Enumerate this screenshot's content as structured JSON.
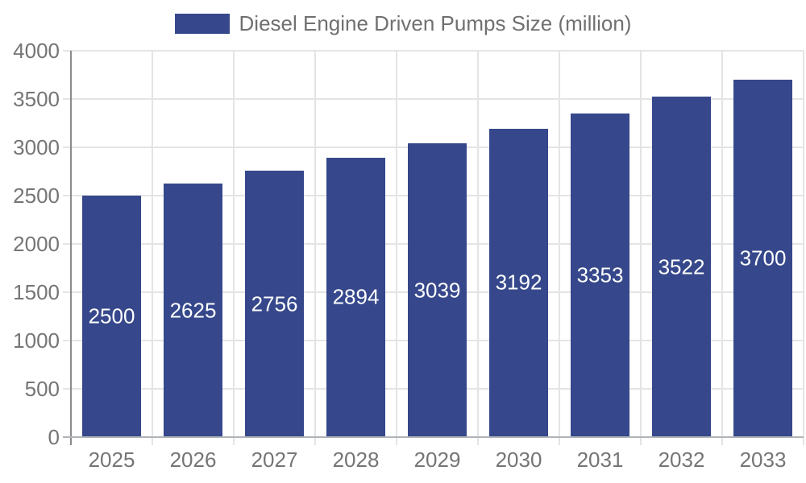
{
  "legend": {
    "label": "Diesel Engine Driven Pumps Size (million)"
  },
  "chart_data": {
    "type": "bar",
    "title": "Diesel Engine Driven Pumps Size (million)",
    "series_name": "Diesel Engine Driven Pumps Size (million)",
    "categories": [
      "2025",
      "2026",
      "2027",
      "2028",
      "2029",
      "2030",
      "2031",
      "2032",
      "2033"
    ],
    "values": [
      2500,
      2625,
      2756,
      2894,
      3039,
      3192,
      3353,
      3522,
      3700
    ],
    "bar_labels": [
      "2500",
      "2625",
      "2756",
      "2894",
      "3039",
      "3192",
      "3353",
      "3522",
      "3700"
    ],
    "xlabel": "",
    "ylabel": "",
    "ylim": [
      0,
      4000
    ],
    "ytick_interval": 500,
    "yticks": [
      0,
      500,
      1000,
      1500,
      2000,
      2500,
      3000,
      3500,
      4000
    ],
    "grid": true,
    "legend_position": "top-center",
    "bar_labels_position": "center-inside"
  },
  "colors": {
    "bar": "#36488B",
    "bar_label_text": "#ffffff",
    "grid_line": "#e4e4e4",
    "y_axis_line": "#8a8a8a",
    "x_axis_line": "#b0b3b8",
    "tick_text": "#757575",
    "legend_text": "#707070",
    "background": "#ffffff"
  }
}
